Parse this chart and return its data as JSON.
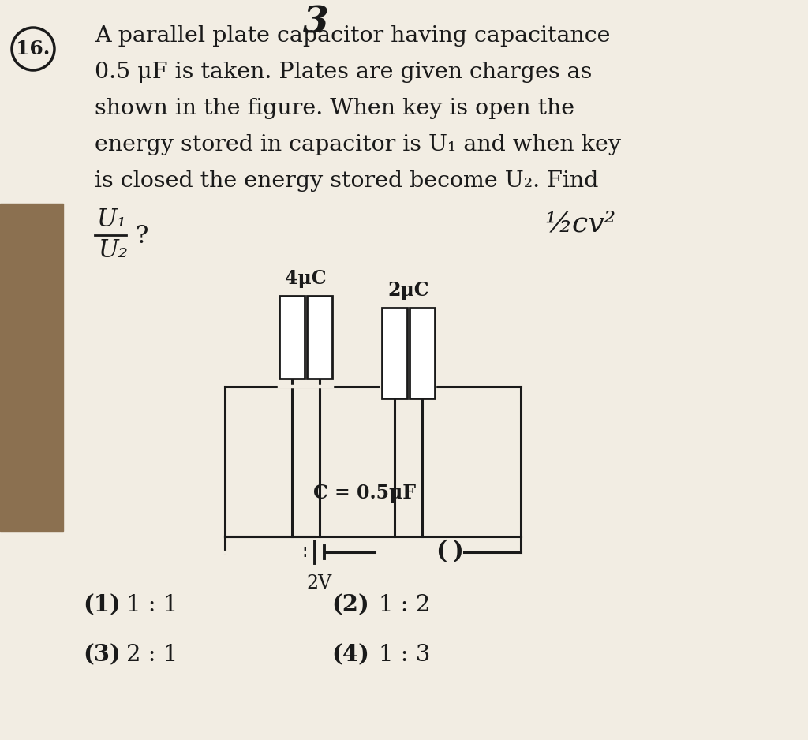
{
  "background_color": "#f2ede3",
  "question_number": "16.",
  "question_text_lines": [
    "A parallel plate capacitor having capacitance",
    "0.5 μF is taken. Plates are given charges as",
    "shown in the figure. When key is open the",
    "energy stored in capacitor is U₁ and when key",
    "is closed the energy stored become U₂. Find"
  ],
  "fraction_numerator": "U₁",
  "fraction_denominator": "U₂",
  "fraction_question_mark": "?",
  "handwritten_note": "½cv²",
  "diagram_label_left": "4μC",
  "diagram_label_right": "2μC",
  "diagram_capacitance": "C = 0.5μF",
  "diagram_voltage": "2V",
  "options": [
    {
      "num": "(1)",
      "val": "1 : 1"
    },
    {
      "num": "(2)",
      "val": "1 : 2"
    },
    {
      "num": "(3)",
      "val": "2 : 1"
    },
    {
      "num": "(4)",
      "val": "1 : 3"
    }
  ],
  "top_number": "3",
  "shadow_color": "#8B7050",
  "text_color": "#1a1a1a"
}
